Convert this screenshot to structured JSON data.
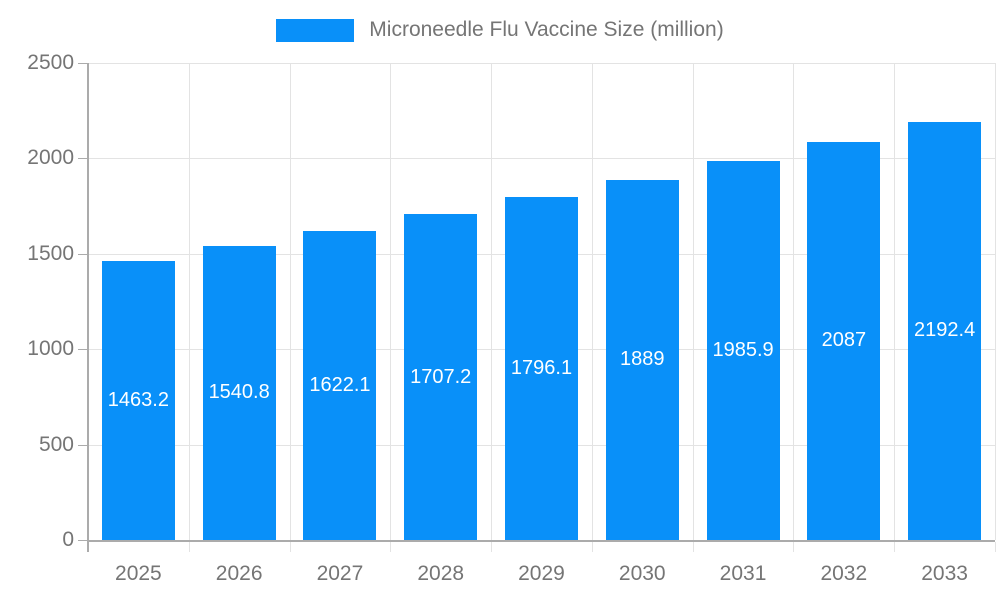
{
  "legend": {
    "label": "Microneedle Flu Vaccine Size (million)"
  },
  "chart_data": {
    "type": "bar",
    "title": "Microneedle Flu Vaccine Size (million)",
    "categories": [
      "2025",
      "2026",
      "2027",
      "2028",
      "2029",
      "2030",
      "2031",
      "2032",
      "2033"
    ],
    "values": [
      1463.2,
      1540.8,
      1622.1,
      1707.2,
      1796.1,
      1889,
      1985.9,
      2087,
      2192.4
    ],
    "bar_labels": [
      "1463.2",
      "1540.8",
      "1622.1",
      "1707.2",
      "1796.1",
      "1889",
      "1985.9",
      "2087",
      "2192.4"
    ],
    "xlabel": "",
    "ylabel": "",
    "ylim": [
      0,
      2500
    ],
    "yticks": [
      0,
      500,
      1000,
      1500,
      2000,
      2500
    ],
    "grid": true,
    "legend_position": "top",
    "colors": {
      "bar": "#0990f9",
      "bar_label": "#ffffff",
      "axis": "#ababab",
      "gridline": "#e3e3e3",
      "tick_text": "#757575",
      "background": "#ffffff"
    }
  }
}
